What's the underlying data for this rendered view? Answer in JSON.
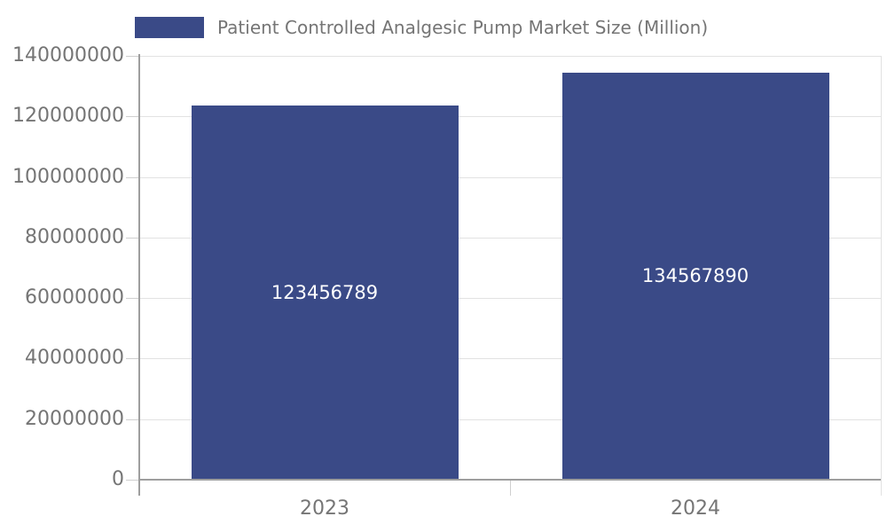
{
  "legend": {
    "label": "Patient Controlled Analgesic Pump Market Size (Million)"
  },
  "chart_data": {
    "type": "bar",
    "title": "Patient Controlled Analgesic Pump Market Size (Million)",
    "categories": [
      "2023",
      "2024"
    ],
    "series": [
      {
        "name": "Patient Controlled Analgesic Pump Market Size (Million)",
        "values": [
          123456789,
          134567890
        ]
      }
    ],
    "bar_value_labels": [
      "123456789",
      "134567890"
    ],
    "xlabel": "",
    "ylabel": "",
    "ylim": [
      0,
      140000000
    ],
    "ytick_interval": 20000000,
    "ytick_labels": [
      "0",
      "20000000",
      "40000000",
      "60000000",
      "80000000",
      "100000000",
      "120000000",
      "140000000"
    ],
    "grid": true,
    "legend_position": "top-left"
  },
  "colors": {
    "bar": "#3a4a87",
    "bar_value_text": "#ffffff",
    "axis_text": "#757575",
    "legend_text": "#757575",
    "gridline": "#e2e2e2",
    "axis_line": "#9e9e9e",
    "tick_line": "#cfcfcf",
    "plot_border": "#e2e2e2",
    "background": "#ffffff"
  }
}
